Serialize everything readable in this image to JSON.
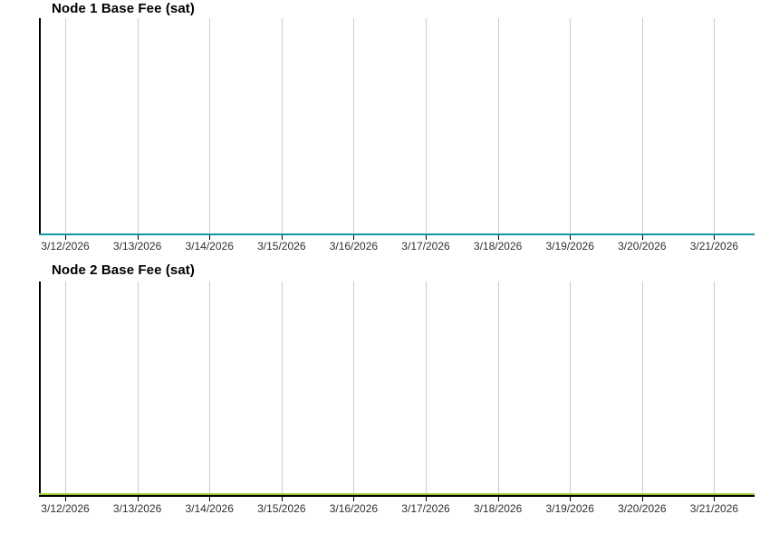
{
  "page": {
    "background": "#ffffff"
  },
  "chart_data": [
    {
      "type": "line",
      "title": "Node 1 Base Fee (sat)",
      "x": [
        "3/12/2026",
        "3/13/2026",
        "3/14/2026",
        "3/15/2026",
        "3/16/2026",
        "3/17/2026",
        "3/18/2026",
        "3/19/2026",
        "3/20/2026",
        "3/21/2026"
      ],
      "series": [
        {
          "name": "Node 1 Base Fee",
          "values": [
            0,
            0,
            0,
            0,
            0,
            0,
            0,
            0,
            0,
            0
          ],
          "color": "#12989E"
        }
      ],
      "xlabel": "",
      "ylabel": "",
      "grid": "vertical-only",
      "legend": false,
      "y_axis_labels": false,
      "series_position": "flat line at baseline, overlapping x-axis"
    },
    {
      "type": "line",
      "title": "Node 2 Base Fee (sat)",
      "x": [
        "3/12/2026",
        "3/13/2026",
        "3/14/2026",
        "3/15/2026",
        "3/16/2026",
        "3/17/2026",
        "3/18/2026",
        "3/19/2026",
        "3/20/2026",
        "3/21/2026"
      ],
      "series": [
        {
          "name": "Node 2 Base Fee",
          "values": [
            0,
            0,
            0,
            0,
            0,
            0,
            0,
            0,
            0,
            0
          ],
          "color": "#9ACD32"
        }
      ],
      "xlabel": "",
      "ylabel": "",
      "grid": "vertical-only",
      "legend": false,
      "y_axis_labels": false,
      "series_position": "flat line at baseline, just above x-axis"
    }
  ]
}
